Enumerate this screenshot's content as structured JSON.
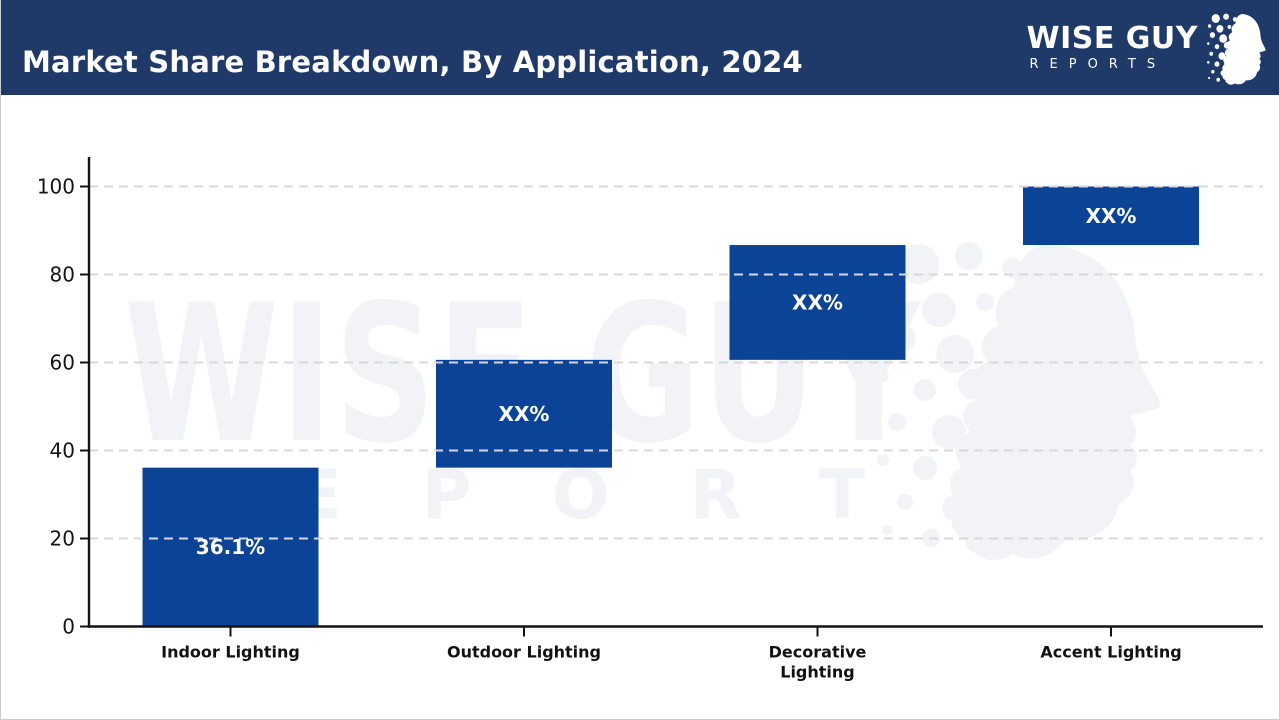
{
  "header": {
    "title": "Market Share Breakdown, By Application, 2024",
    "logo": {
      "wordmark": "WISE GUY",
      "subtext": "REPORTS"
    }
  },
  "watermark": {
    "wordmark": "WISE GUY",
    "subtext": "REPORTS"
  },
  "colors": {
    "header_bg": "#1F3A68",
    "header_text": "#FFFFFF",
    "bar": "#0B4397",
    "bar_label": "#FFFFFF",
    "grid": "#D8D8D8",
    "axis": "#141414",
    "watermark": "#F2F3F6"
  },
  "chart_data": {
    "type": "bar",
    "subtype": "waterfall",
    "title": "Market Share Breakdown, By Application, 2024",
    "xlabel": "",
    "ylabel": "",
    "ylim": [
      0,
      100
    ],
    "yticks": [
      0,
      20,
      40,
      60,
      80,
      100
    ],
    "grid": "horizontal-dashed",
    "legend": "none",
    "categories": [
      "Indoor Lighting",
      "Outdoor Lighting",
      "Decorative\nLighting",
      "Accent Lighting"
    ],
    "segments": [
      {
        "category": "Indoor Lighting",
        "label": "36.1%",
        "start": 0,
        "end": 36.1
      },
      {
        "category": "Outdoor Lighting",
        "label": "XX%",
        "start": 36.1,
        "end": 60.6
      },
      {
        "category": "Decorative\nLighting",
        "label": "XX%",
        "start": 60.6,
        "end": 86.7
      },
      {
        "category": "Accent Lighting",
        "label": "XX%",
        "start": 86.7,
        "end": 100
      }
    ]
  }
}
